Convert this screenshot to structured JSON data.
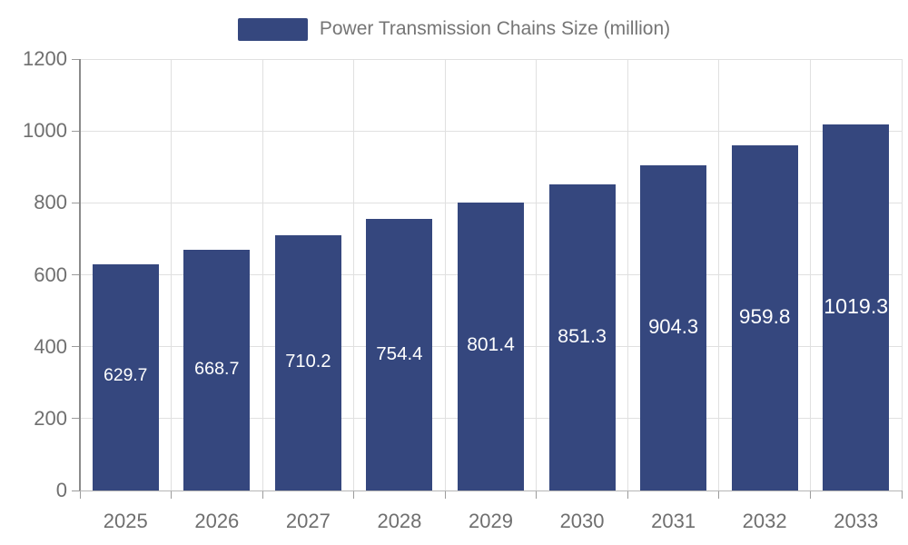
{
  "chart_data": {
    "type": "bar",
    "title": "Power Transmission Chains Size (million)",
    "categories": [
      "2025",
      "2026",
      "2027",
      "2028",
      "2029",
      "2030",
      "2031",
      "2032",
      "2033"
    ],
    "series": [
      {
        "name": "Power Transmission Chains Size (million)",
        "values": [
          629.7,
          668.7,
          710.2,
          754.4,
          801.4,
          851.3,
          904.3,
          959.8,
          1019.3
        ]
      }
    ],
    "xlabel": "",
    "ylabel": "",
    "ylim": [
      0,
      1200
    ],
    "yticks": [
      0,
      200,
      400,
      600,
      800,
      1000,
      1200
    ],
    "grid": true,
    "legend_position": "top",
    "bar_labels_position": "inside-center"
  },
  "colors": {
    "bar": "#35477e",
    "grid": "#e0e0e0",
    "y_axis_line": "#8a8a8a",
    "x_axis_line": "#b5b5b5",
    "tick": "#9b9b9b",
    "axis_label": "#6f6f6f",
    "data_label": "#ffffff",
    "legend_text": "#757575",
    "background": "#ffffff"
  }
}
